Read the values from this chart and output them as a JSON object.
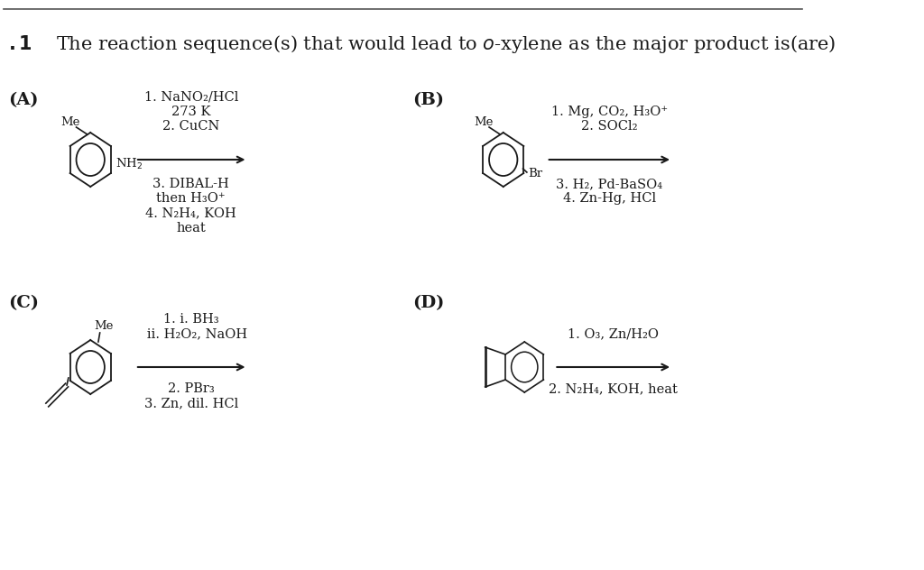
{
  "title": ".1    The reaction sequence(s) that would lead to ο-xylene as the major product is(are)",
  "title_italic_word": "o",
  "bg_color": "#ffffff",
  "text_color": "#1a1a1a",
  "label_A": "(A)",
  "label_B": "(B)",
  "label_C": "(C)",
  "label_D": "(D)",
  "rxn_A_above": "1. NaNO₂/HCl\n273 K\n2. CuCN",
  "rxn_A_below": "3. DIBAL-H\nthen H₃O⁺\n4. N₂H₄, KOH\nheat",
  "rxn_B_above": "1. Mg, CO₂, H₃O⁺\n2. SOCl₂",
  "rxn_B_below": "3. H₂, Pd-BaSO₄\n4. Zn-Hg, HCl",
  "rxn_C_above": "1. i. BH₃\n   ii. H₂O₂, NaOH",
  "rxn_C_below": "2. PBr₃\n3. Zn, dil. HCl",
  "rxn_D_above": "1. O₃, Zn/H₂O",
  "rxn_D_below": "2. N₂H₄, KOH, heat",
  "font_size_title": 15,
  "font_size_label": 14,
  "font_size_rxn": 10.5,
  "font_size_mol": 9.5
}
